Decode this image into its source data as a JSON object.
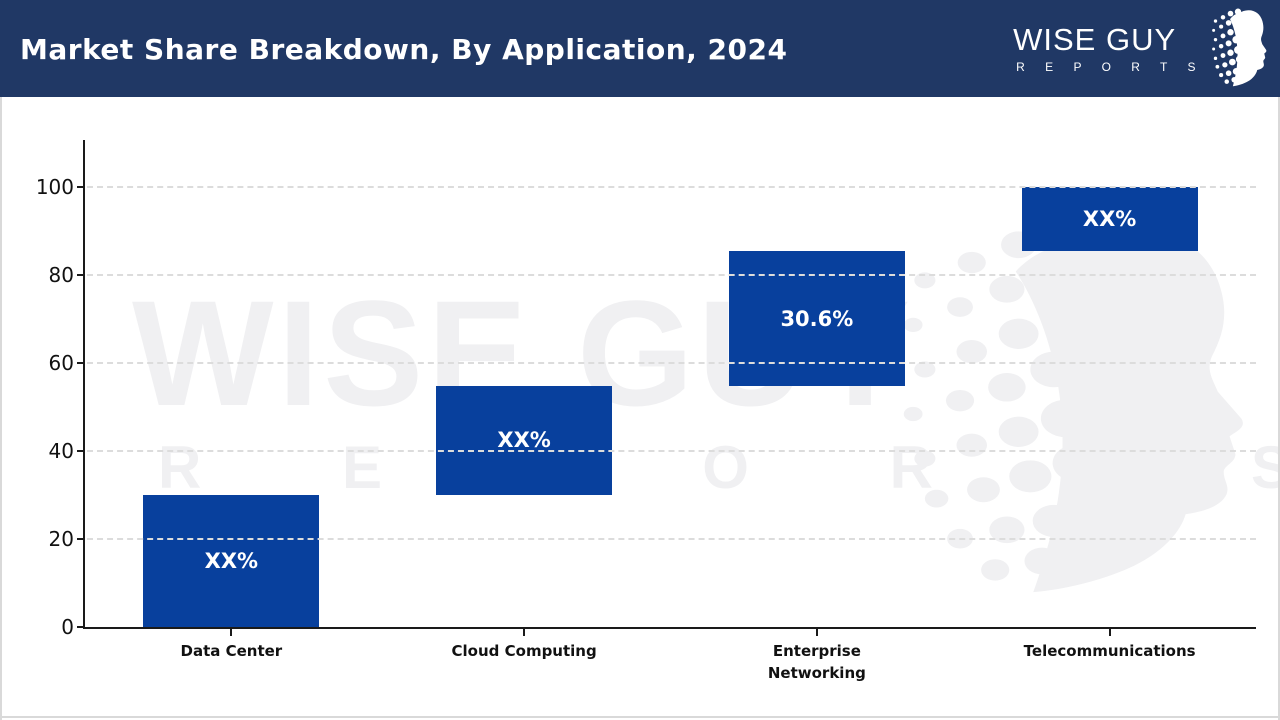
{
  "header": {
    "title": "Market Share Breakdown, By Application, 2024"
  },
  "logo": {
    "line1": "WISE GUY",
    "line2": "R E P O R T S"
  },
  "watermark": {
    "line1": "WISE GUY",
    "line2": "R E P O R T S"
  },
  "chart_data": {
    "type": "bar",
    "subtype": "waterfall",
    "title": "Market Share Breakdown, By Application, 2024",
    "categories": [
      "Data Center",
      "Cloud Computing",
      "Enterprise Networking",
      "Telecommunications"
    ],
    "segments": [
      {
        "category": "Data Center",
        "start": 0,
        "end": 30,
        "label": "XX%"
      },
      {
        "category": "Cloud Computing",
        "start": 30,
        "end": 54.8,
        "label": "XX%"
      },
      {
        "category": "Enterprise Networking",
        "start": 54.8,
        "end": 85.4,
        "label": "30.6%"
      },
      {
        "category": "Telecommunications",
        "start": 85.4,
        "end": 100,
        "label": "XX%"
      }
    ],
    "y_ticks": [
      0,
      20,
      40,
      60,
      80,
      100
    ],
    "ylim": [
      0,
      110
    ],
    "xlabel": "",
    "ylabel": "",
    "grid": "horizontal-dashed",
    "legend": "none",
    "colors": {
      "bar": "#08409d",
      "bar_label": "#ffffff",
      "grid": "#dcdcdc",
      "axis": "#1a1a1a",
      "header_bg": "#203865",
      "watermark": "#f0f0f2"
    }
  }
}
